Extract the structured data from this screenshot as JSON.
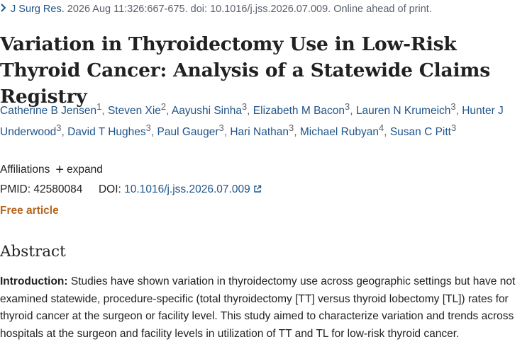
{
  "citation": {
    "journal": "J Surg Res.",
    "details": "2026 Aug 11:326:667-675. doi: 10.1016/j.jss.2026.07.009. Online ahead of print."
  },
  "title": "Variation in Thyroidectomy Use in Low-Risk Thyroid Cancer: Analysis of a Statewide Claims Registry",
  "authors": [
    {
      "name": "Catherine B Jensen",
      "aff": "1"
    },
    {
      "name": "Steven Xie",
      "aff": "2"
    },
    {
      "name": "Aayushi Sinha",
      "aff": "3"
    },
    {
      "name": "Elizabeth M Bacon",
      "aff": "3"
    },
    {
      "name": "Lauren N Krumeich",
      "aff": "3"
    },
    {
      "name": "Hunter J Underwood",
      "aff": "3"
    },
    {
      "name": "David T Hughes",
      "aff": "3"
    },
    {
      "name": "Paul Gauger",
      "aff": "3"
    },
    {
      "name": "Hari Nathan",
      "aff": "3"
    },
    {
      "name": "Michael Rubyan",
      "aff": "4"
    },
    {
      "name": "Susan C Pitt",
      "aff": "3"
    }
  ],
  "affiliations": {
    "label": "Affiliations",
    "expand": "expand"
  },
  "ids": {
    "pmid_label": "PMID:",
    "pmid": "42580084",
    "doi_label": "DOI:",
    "doi": "10.1016/j.jss.2026.07.009"
  },
  "free_article": "Free article",
  "abstract": {
    "heading": "Abstract",
    "intro_label": "Introduction:",
    "intro_text": "Studies have shown variation in thyroidectomy use across geographic settings but have not examined statewide, procedure-specific (total thyroidectomy [TT] versus thyroid lobectomy [TL]) rates for thyroid cancer at the surgeon or facility level. This study aimed to characterize variation and trends across hospitals at the surgeon and facility levels in utilization of TT and TL for low-risk thyroid cancer."
  },
  "colors": {
    "link": "#20558a",
    "free": "#b5651d",
    "text": "#212121",
    "muted": "#5b616b"
  }
}
